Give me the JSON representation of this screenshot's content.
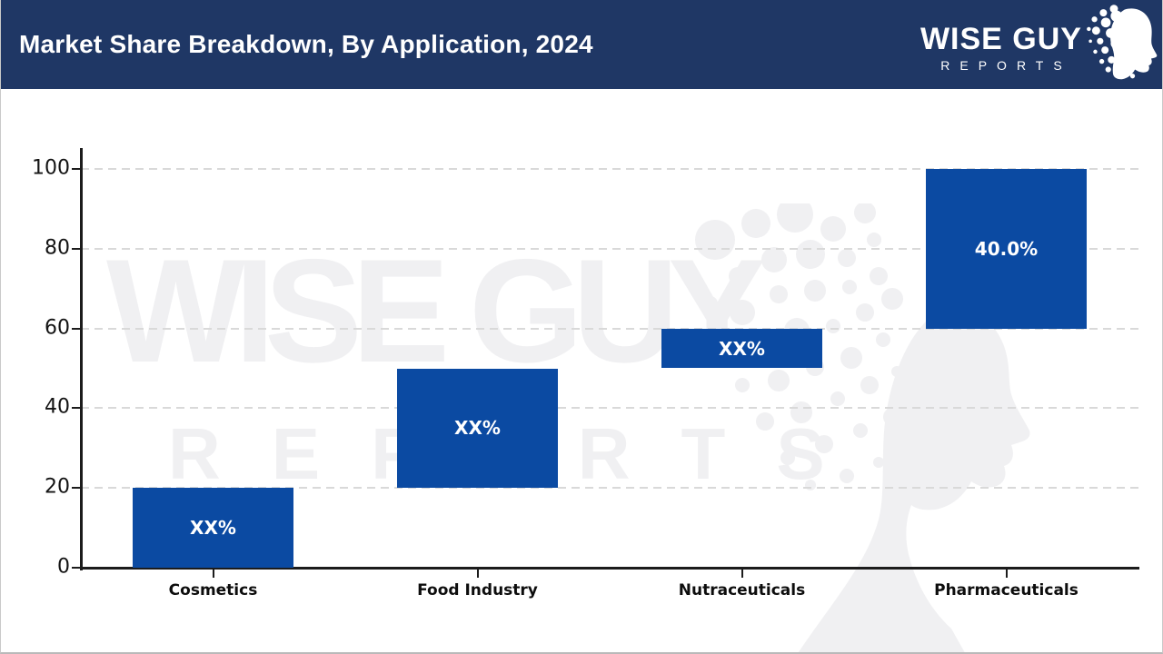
{
  "header": {
    "title": "Market Share Breakdown, By Application, 2024"
  },
  "logo": {
    "line1": "WISE GUY",
    "line2": "REPORTS",
    "head_icon": "dotted-head-profile"
  },
  "watermark": {
    "line1": "WISE GUY",
    "line2": "REPORTS",
    "head_icon": "dotted-head-profile"
  },
  "colors": {
    "header_bg": "#1f3765",
    "bar": "#0b4aa2",
    "bar_label": "#ffffff",
    "axis": "#1c1c1c",
    "grid": "#d9d9d9",
    "watermark": "#f0f0f2",
    "title_text": "#ffffff"
  },
  "chart_data": {
    "type": "bar",
    "variant": "floating-waterfall",
    "title": "Market Share Breakdown, By Application, 2024",
    "categories": [
      "Cosmetics",
      "Food Industry",
      "Nutraceuticals",
      "Pharmaceuticals"
    ],
    "bars": [
      {
        "category": "Cosmetics",
        "start": 0,
        "end": 20,
        "label": "XX%"
      },
      {
        "category": "Food Industry",
        "start": 20,
        "end": 50,
        "label": "XX%"
      },
      {
        "category": "Nutraceuticals",
        "start": 50,
        "end": 60,
        "label": "XX%"
      },
      {
        "category": "Pharmaceuticals",
        "start": 60,
        "end": 100,
        "label": "40.0%"
      }
    ],
    "yticks": [
      0,
      20,
      40,
      60,
      80,
      100
    ],
    "ylim": [
      0,
      105
    ],
    "xlabel": "",
    "ylabel": "",
    "grid": "horizontal-dashed",
    "legend": "none"
  }
}
